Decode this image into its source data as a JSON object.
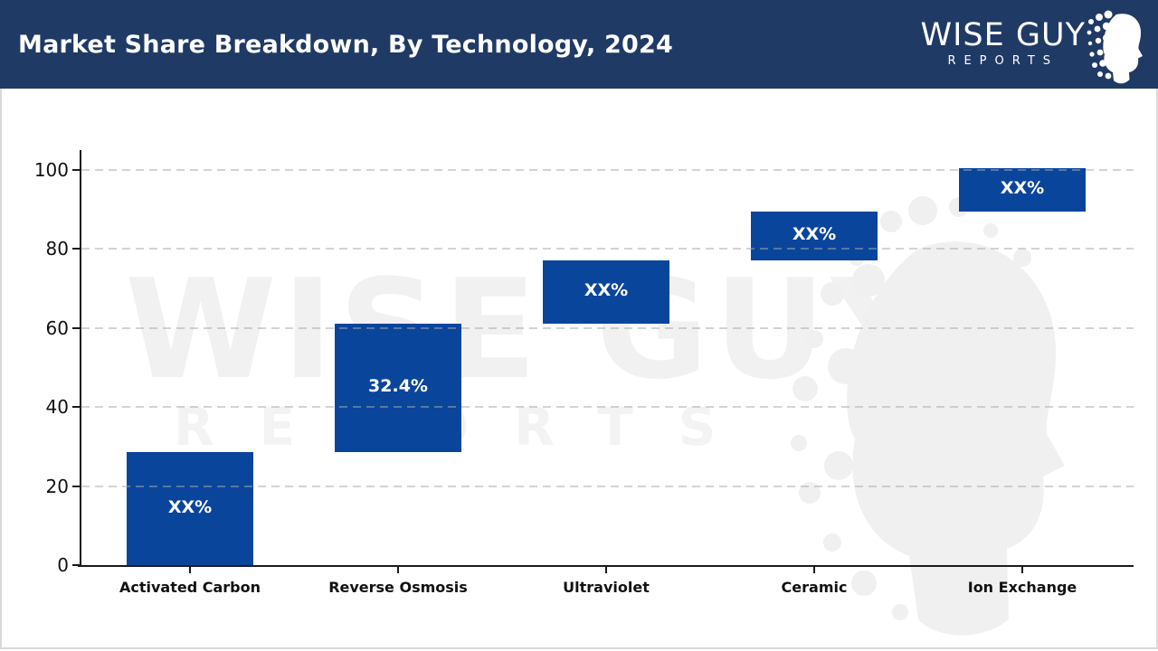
{
  "header": {
    "title": "Market Share Breakdown, By Technology, 2024",
    "bg_color": "#203A66",
    "logo": {
      "line1": "WISE GUY",
      "line2": "REPORTS"
    }
  },
  "watermark": {
    "line1": "WISE GUY",
    "line2": "REPORTS"
  },
  "chart_data": {
    "type": "bar",
    "subtype": "floating-waterfall",
    "title": "Market Share Breakdown, By Technology, 2024",
    "xlabel": "",
    "ylabel": "",
    "ylim": [
      0,
      100
    ],
    "yticks": [
      0,
      20,
      40,
      60,
      80,
      100
    ],
    "grid": "horizontal-dashed",
    "legend": "none",
    "bar_color": "#0A459C",
    "bar_label_color": "#FFFFFF",
    "categories": [
      "Activated Carbon",
      "Reverse Osmosis",
      "Ultraviolet",
      "Ceramic",
      "Ion Exchange"
    ],
    "series": [
      {
        "name": "Market Share",
        "segments": [
          {
            "category": "Activated Carbon",
            "start": 0,
            "end": 28.6,
            "label": "XX%"
          },
          {
            "category": "Reverse Osmosis",
            "start": 28.6,
            "end": 61.0,
            "label": "32.4%"
          },
          {
            "category": "Ultraviolet",
            "start": 61.0,
            "end": 77.2,
            "label": "XX%"
          },
          {
            "category": "Ceramic",
            "start": 77.2,
            "end": 89.5,
            "label": "XX%"
          },
          {
            "category": "Ion Exchange",
            "start": 89.5,
            "end": 100.4,
            "label": "XX%"
          }
        ]
      }
    ]
  }
}
